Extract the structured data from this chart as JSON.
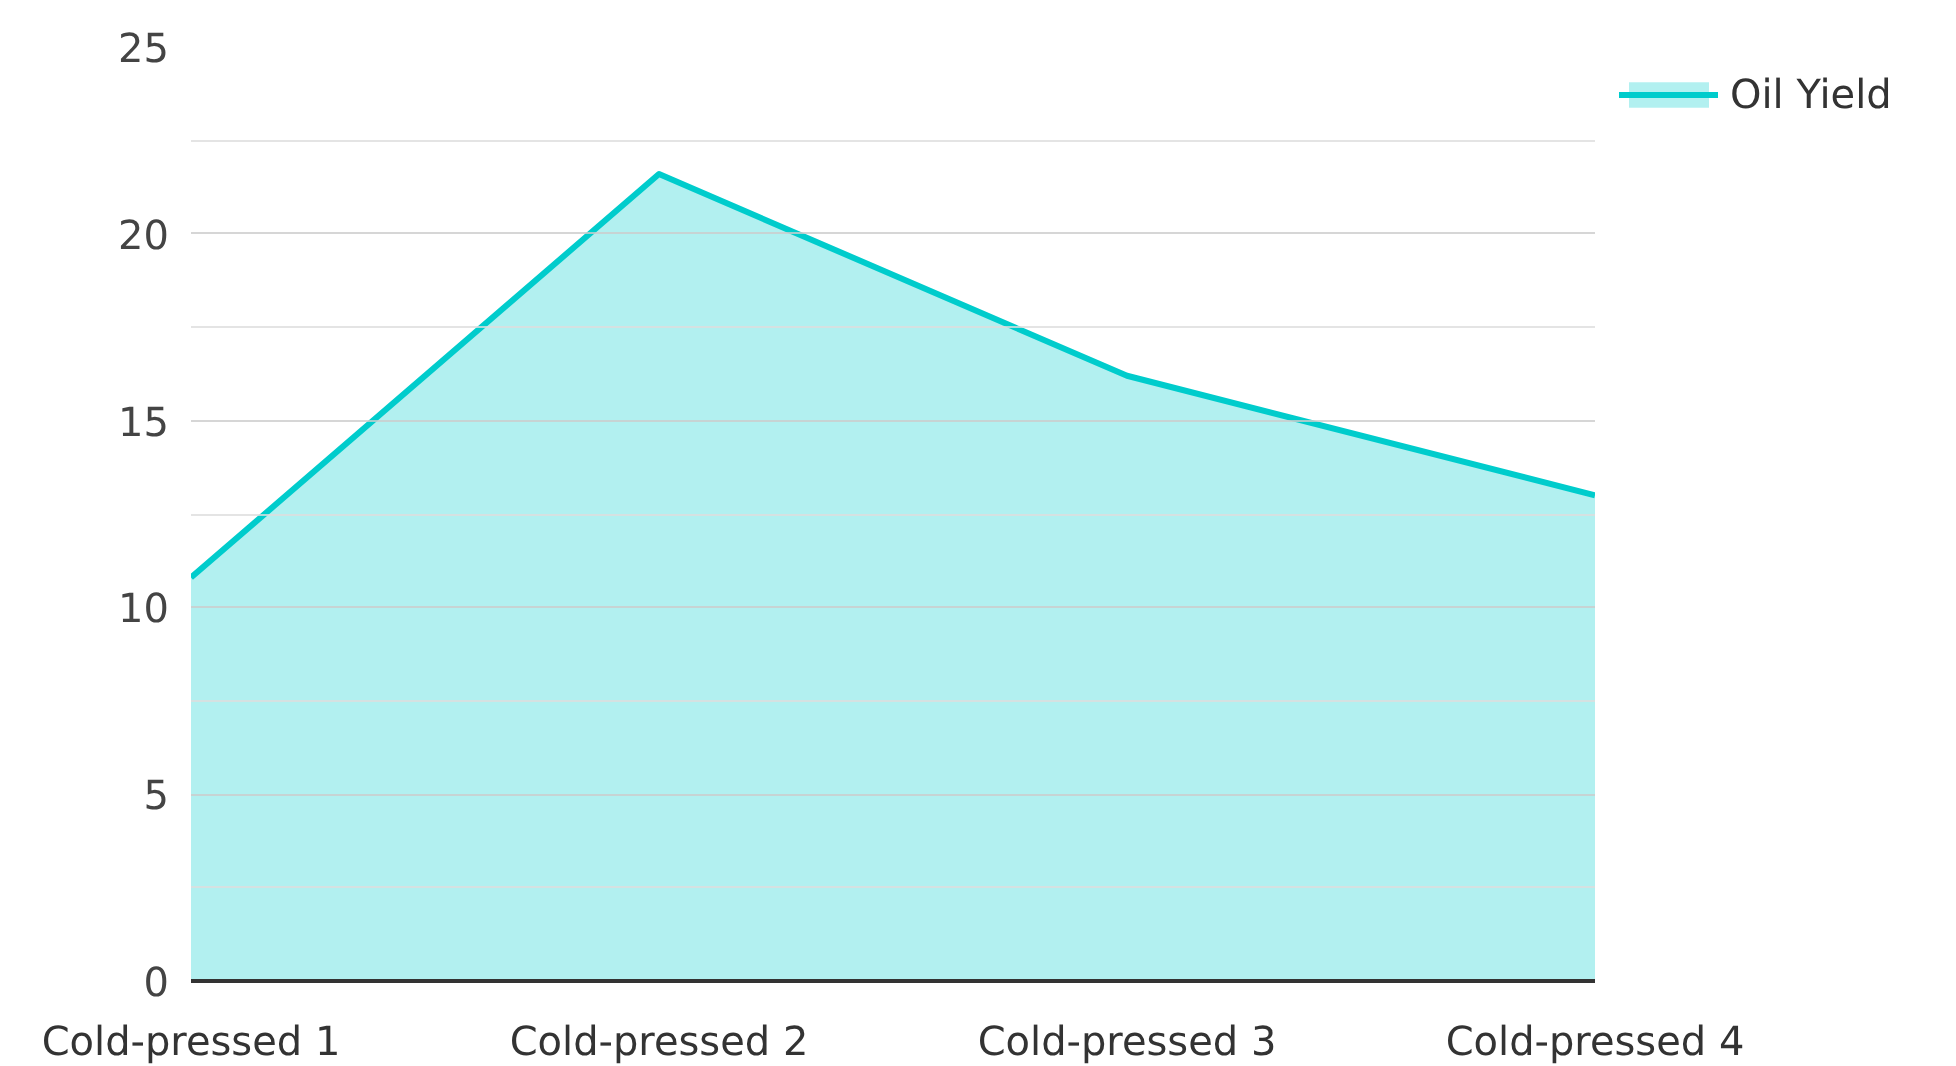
{
  "chart_data": {
    "type": "area",
    "categories": [
      "Cold-pressed 1",
      "Cold-pressed 2",
      "Cold-pressed 3",
      "Cold-pressed 4"
    ],
    "series": [
      {
        "name": "Oil Yield",
        "color": "#00cccc",
        "values": [
          10.8,
          21.6,
          16.2,
          13.0
        ]
      }
    ],
    "ylim": [
      0,
      25
    ],
    "yticks": [
      0,
      {
        "value": 2.5,
        "label": null
      },
      5,
      {
        "value": 7.5,
        "label": null
      },
      10,
      {
        "value": 12.5,
        "label": null
      },
      15,
      {
        "value": 17.5,
        "label": null
      },
      20,
      {
        "value": 22.5,
        "label": null
      },
      25
    ],
    "grid": "y",
    "legend": "top right"
  }
}
